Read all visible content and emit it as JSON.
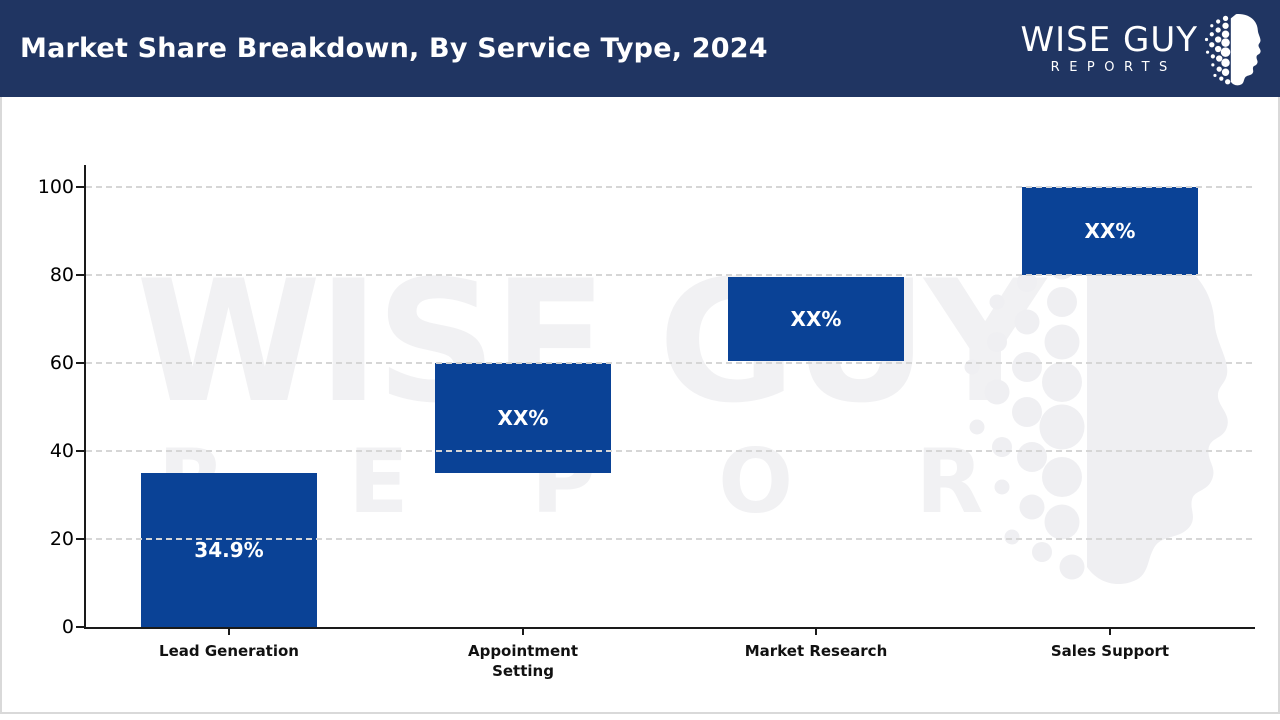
{
  "header": {
    "title": "Market Share Breakdown, By Service Type, 2024",
    "logo": {
      "name_top": "WISE GUY",
      "name_bottom": "REPORTS"
    }
  },
  "watermark": {
    "big_text": "WISE GUY",
    "small_text": "R E P O R T S"
  },
  "chart_data": {
    "type": "bar",
    "subtype": "floating-waterfall",
    "title": "Market Share Breakdown, By Service Type, 2024",
    "categories": [
      "Lead Generation",
      "Appointment Setting",
      "Market Research",
      "Sales Support"
    ],
    "bars": [
      {
        "category": "Lead Generation",
        "display": "Lead Generation",
        "start": 0,
        "end": 34.9,
        "label": "34.9%"
      },
      {
        "category": "Appointment Setting",
        "display": "Appointment\nSetting",
        "start": 34.9,
        "end": 60,
        "label": "XX%"
      },
      {
        "category": "Market Research",
        "display": "Market Research",
        "start": 60.5,
        "end": 79.5,
        "label": "XX%"
      },
      {
        "category": "Sales Support",
        "display": "Sales Support",
        "start": 80,
        "end": 100,
        "label": "XX%"
      }
    ],
    "ylim": [
      0,
      100
    ],
    "yticks": [
      0,
      20,
      40,
      60,
      80,
      100
    ],
    "xlabel": "",
    "ylabel": "",
    "grid": "horizontal-dashed",
    "legend": "none",
    "bar_color": "#0a4296",
    "bar_label_color": "#ffffff"
  },
  "colors": {
    "header_bg": "#203562",
    "bar": "#0a4296",
    "grid": "#d6d6d6",
    "axis": "#1a1a1a",
    "watermark": "#f1f1f3",
    "title_text": "#ffffff"
  }
}
